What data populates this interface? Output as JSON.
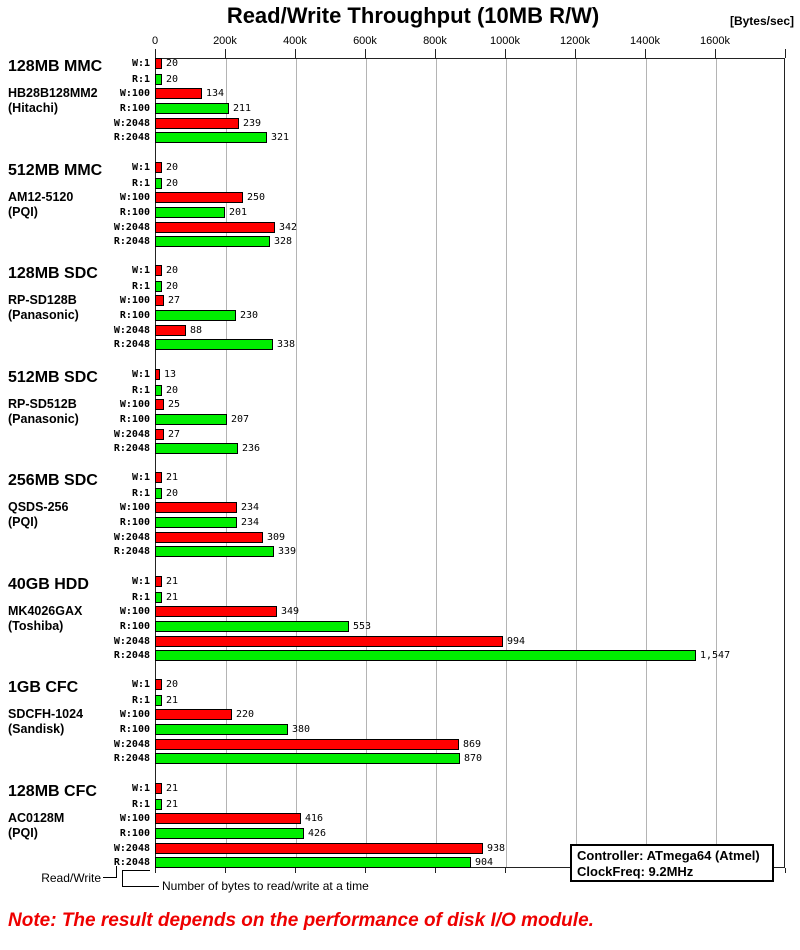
{
  "title": "Read/Write Throughput (10MB R/W)",
  "unit_label": "[Bytes/sec]",
  "note": "Note: The result depends on the performance of disk I/O module.",
  "info_box": {
    "controller": "Controller: ATmega64 (Atmel)",
    "clock": "ClockFreq: 9.2MHz"
  },
  "legend": {
    "read_write": "Read/Write",
    "bytes_at_a_time": "Number of bytes to read/write at a time"
  },
  "colors": {
    "write_bar": "#ff0000",
    "read_bar": "#00ee00",
    "gridline": "#b4b4b4",
    "note_text": "#ee0000"
  },
  "chart_data": {
    "type": "bar",
    "orientation": "horizontal",
    "title": "Read/Write Throughput (10MB R/W)",
    "xlabel": "[Bytes/sec]",
    "x_ticks": [
      "0",
      "200k",
      "400k",
      "600k",
      "800k",
      "1000k",
      "1200k",
      "1400k",
      "1600k"
    ],
    "x_tick_step_k": 200,
    "xlim_k": [
      0,
      1800
    ],
    "grid": true,
    "row_labels": [
      "W:1",
      "R:1",
      "W:100",
      "R:100",
      "W:2048",
      "R:2048"
    ],
    "series_colors": {
      "write": "#ff0000",
      "read": "#00ee00"
    },
    "groups": [
      {
        "device": "128MB MMC",
        "model": "HB28B128MM2",
        "maker": "(Hitachi)",
        "values_k": [
          20,
          20,
          134,
          211,
          239,
          321
        ],
        "labels": [
          "20",
          "20",
          "134",
          "211",
          "239",
          "321"
        ]
      },
      {
        "device": "512MB MMC",
        "model": "AM12-5120",
        "maker": "(PQI)",
        "values_k": [
          20,
          20,
          250,
          201,
          342,
          328
        ],
        "labels": [
          "20",
          "20",
          "250",
          "201",
          "342",
          "328"
        ]
      },
      {
        "device": "128MB SDC",
        "model": "RP-SD128B",
        "maker": "(Panasonic)",
        "values_k": [
          20,
          20,
          27,
          230,
          88,
          338
        ],
        "labels": [
          "20",
          "20",
          "27",
          "230",
          "88",
          "338"
        ]
      },
      {
        "device": "512MB SDC",
        "model": "RP-SD512B",
        "maker": "(Panasonic)",
        "values_k": [
          13,
          20,
          25,
          207,
          27,
          236
        ],
        "labels": [
          "13",
          "20",
          "25",
          "207",
          "27",
          "236"
        ]
      },
      {
        "device": "256MB SDC",
        "model": "QSDS-256",
        "maker": "(PQI)",
        "values_k": [
          21,
          20,
          234,
          234,
          309,
          339
        ],
        "labels": [
          "21",
          "20",
          "234",
          "234",
          "309",
          "339"
        ]
      },
      {
        "device": "40GB HDD",
        "model": "MK4026GAX",
        "maker": "(Toshiba)",
        "values_k": [
          21,
          21,
          349,
          553,
          994,
          1547
        ],
        "labels": [
          "21",
          "21",
          "349",
          "553",
          "994",
          "1,547"
        ]
      },
      {
        "device": "1GB CFC",
        "model": "SDCFH-1024",
        "maker": "(Sandisk)",
        "values_k": [
          20,
          21,
          220,
          380,
          869,
          870
        ],
        "labels": [
          "20",
          "21",
          "220",
          "380",
          "869",
          "870"
        ]
      },
      {
        "device": "128MB CFC",
        "model": "AC0128M",
        "maker": "(PQI)",
        "values_k": [
          21,
          21,
          416,
          426,
          938,
          904
        ],
        "labels": [
          "21",
          "21",
          "416",
          "426",
          "938",
          "904"
        ]
      }
    ]
  }
}
